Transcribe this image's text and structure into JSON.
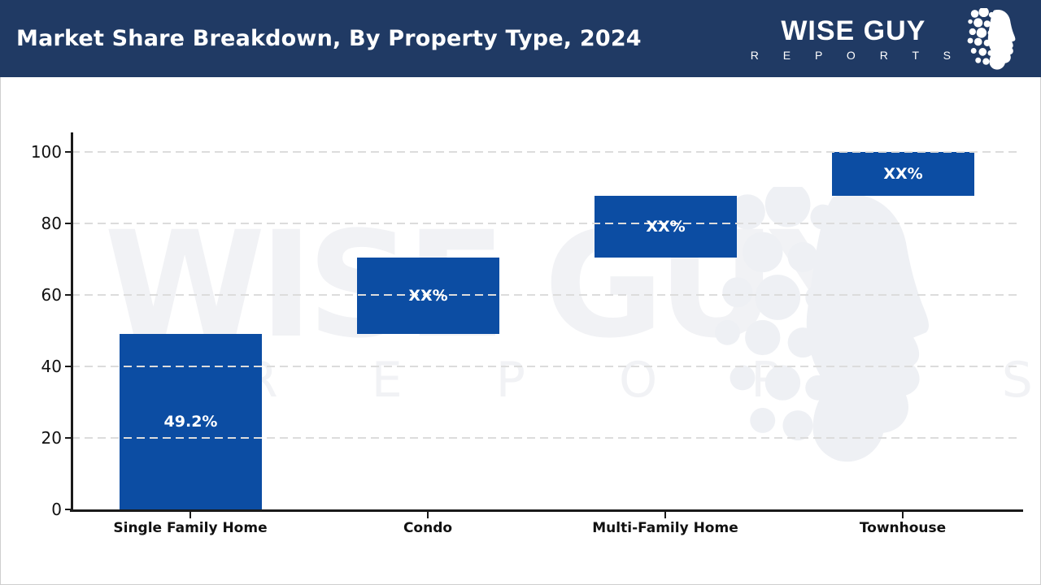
{
  "header": {
    "title": "Market Share Breakdown, By Property Type, 2024",
    "logo": {
      "name": "WISE GUY",
      "subname": "R E P O R T S",
      "icon": "dotted-head-profile-icon"
    }
  },
  "watermark": {
    "line1": "WISE GUY",
    "line2": "R E P O R T S",
    "icon": "dotted-head-profile-icon"
  },
  "colors": {
    "header_bg": "#203a64",
    "bar": "#0c4da3",
    "grid": "#dcdcdc",
    "axis": "#1a1a1a",
    "bar_label": "#ffffff",
    "watermark": "#f1f2f5",
    "tick_text": "#111111"
  },
  "chart_data": {
    "type": "bar",
    "subtype": "waterfall",
    "title": "Market Share Breakdown, By Property Type, 2024",
    "xlabel": "",
    "ylabel": "",
    "categories": [
      "Single Family Home",
      "Condo",
      "Multi-Family Home",
      "Townhouse"
    ],
    "bars": [
      {
        "category": "Single Family Home",
        "start": 0,
        "end": 49.2,
        "label": "49.2%"
      },
      {
        "category": "Condo",
        "start": 49.2,
        "end": 70.5,
        "label": "XX%"
      },
      {
        "category": "Multi-Family Home",
        "start": 70.5,
        "end": 87.7,
        "label": "XX%"
      },
      {
        "category": "Townhouse",
        "start": 87.7,
        "end": 100,
        "label": "XX%"
      }
    ],
    "yticks": [
      0,
      20,
      40,
      60,
      80,
      100
    ],
    "ylim": [
      0,
      105
    ],
    "grid": "horizontal-dashed",
    "legend": "none"
  }
}
